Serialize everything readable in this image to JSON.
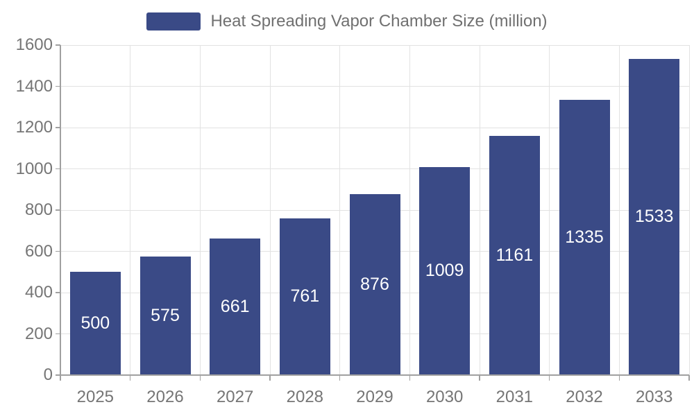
{
  "legend": {
    "label": "Heat Spreading Vapor Chamber Size (million)"
  },
  "chart_data": {
    "type": "bar",
    "title": "Heat Spreading Vapor Chamber Size (million)",
    "categories": [
      "2025",
      "2026",
      "2027",
      "2028",
      "2029",
      "2030",
      "2031",
      "2032",
      "2033"
    ],
    "values": [
      500,
      575,
      661,
      761,
      876,
      1009,
      1161,
      1335,
      1533
    ],
    "xlabel": "",
    "ylabel": "",
    "ylim": [
      0,
      1600
    ],
    "yticks": [
      0,
      200,
      400,
      600,
      800,
      1000,
      1200,
      1400,
      1600
    ],
    "grid": true,
    "legend_position": "top",
    "value_label_position": "inside-center"
  },
  "colors": {
    "bar": "#3A4A86",
    "grid": "#E2E2E2",
    "axis": "#A0A0A0",
    "tick_label": "#757575",
    "legend_text": "#707070",
    "value_label": "#FFFFFF",
    "background": "#FFFFFF"
  }
}
